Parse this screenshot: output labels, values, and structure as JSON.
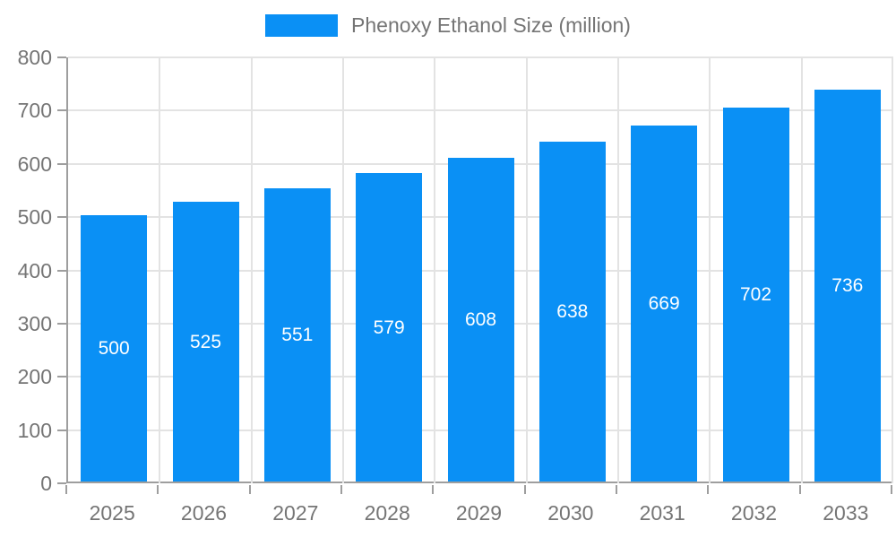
{
  "legend": {
    "label": "Phenoxy Ethanol Size (million)"
  },
  "chart_data": {
    "type": "bar",
    "title": "Phenoxy Ethanol Size (million)",
    "categories": [
      "2025",
      "2026",
      "2027",
      "2028",
      "2029",
      "2030",
      "2031",
      "2032",
      "2033"
    ],
    "series": [
      {
        "name": "Phenoxy Ethanol Size (million)",
        "values": [
          500,
          525,
          551,
          579,
          608,
          638,
          669,
          702,
          736
        ]
      }
    ],
    "xlabel": "",
    "ylabel": "",
    "ylim": [
      0,
      800
    ],
    "yticks": [
      0,
      100,
      200,
      300,
      400,
      500,
      600,
      700,
      800
    ],
    "grid": true,
    "legend_position": "top-center",
    "value_labels": "inside-center",
    "colors": {
      "bar": "#0a90f5",
      "grid": "#e3e3e3",
      "axis": "#9e9e9e",
      "tick_label": "#757575",
      "value_label": "#ffffff"
    }
  }
}
